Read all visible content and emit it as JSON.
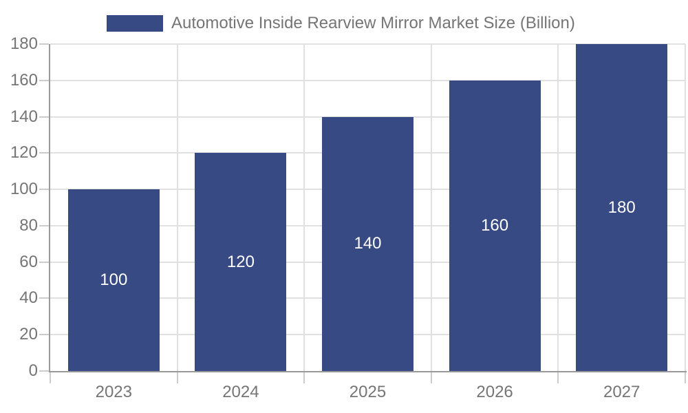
{
  "chart_data": {
    "type": "bar",
    "title": "Automotive Inside Rearview Mirror Market Size (Billion)",
    "categories": [
      "2023",
      "2024",
      "2025",
      "2026",
      "2027"
    ],
    "series": [
      {
        "name": "Automotive Inside Rearview Mirror Market Size (Billion)",
        "values": [
          100,
          120,
          140,
          160,
          180
        ]
      }
    ],
    "xlabel": "",
    "ylabel": "",
    "ylim": [
      0,
      180
    ],
    "yticks": [
      0,
      20,
      40,
      60,
      80,
      100,
      120,
      140,
      160,
      180
    ],
    "grid": true,
    "legend_position": "top-center",
    "colors": {
      "bar": "#384A83",
      "grid": "#e0e0e0",
      "axis": "#999999",
      "tick": "#cccccc",
      "tick_label": "#757575",
      "legend_text": "#757575",
      "value_label": "#ffffff",
      "background": "#ffffff"
    }
  }
}
